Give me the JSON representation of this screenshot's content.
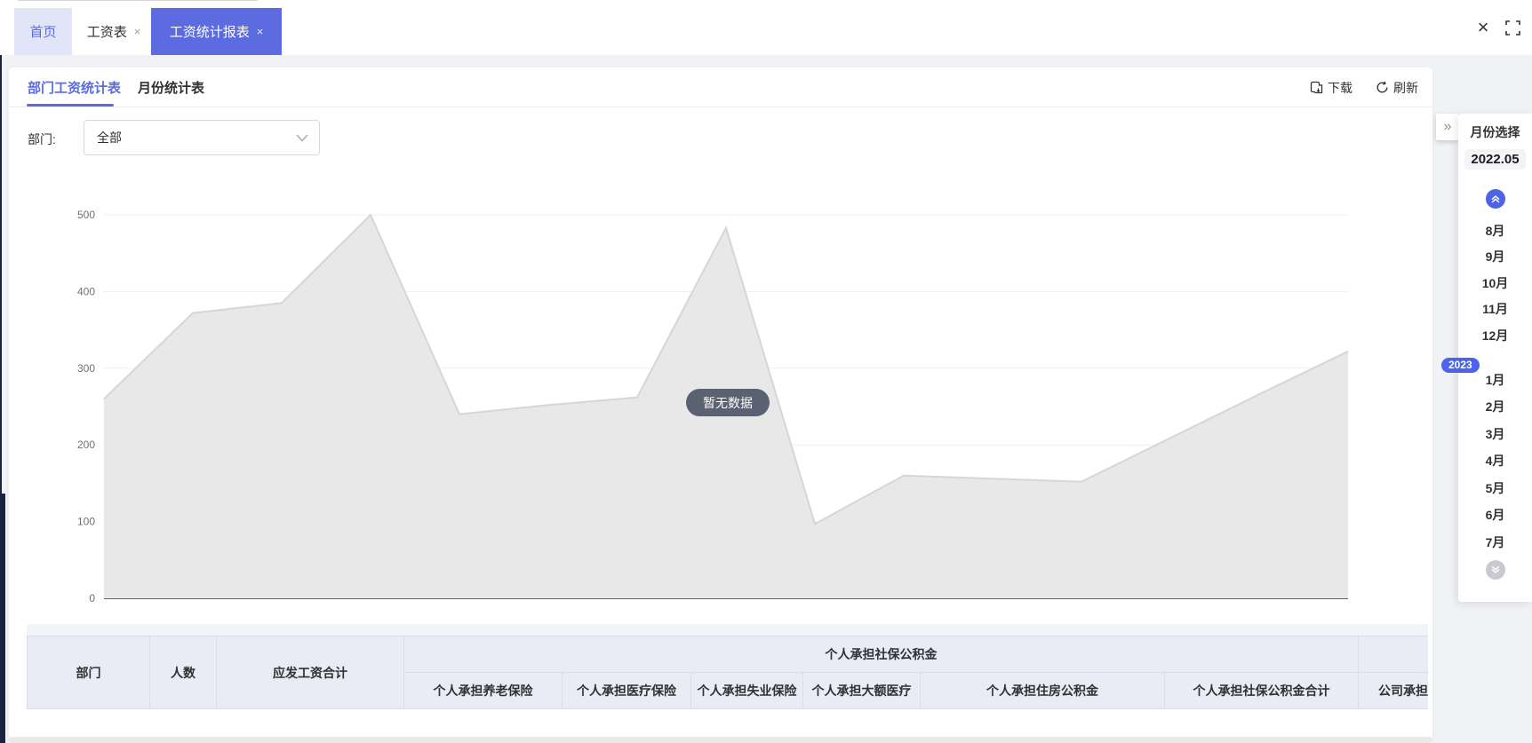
{
  "topbar": {
    "tabs": [
      {
        "label": "首页"
      },
      {
        "label": "工资表",
        "close": "×"
      },
      {
        "label": "工资统计报表",
        "close": "×"
      }
    ],
    "close_glyph": "×"
  },
  "card": {
    "tabs": [
      {
        "label": "部门工资统计表"
      },
      {
        "label": "月份统计表"
      }
    ],
    "actions": {
      "download": "下载",
      "refresh": "刷新"
    }
  },
  "filter": {
    "label": "部门:",
    "value": "全部"
  },
  "chart_data": {
    "type": "area",
    "series": [
      {
        "name": "",
        "values": [
          260,
          372,
          385,
          500,
          240,
          252,
          262,
          483,
          97,
          160,
          156,
          152,
          209,
          266,
          322
        ]
      }
    ],
    "y_ticks": [
      0,
      100,
      200,
      300,
      400,
      500
    ],
    "ylim": [
      0,
      500
    ],
    "x_tick_labels_visible": false,
    "grid": true,
    "area_color": "#e8e8e8",
    "line_color": "#d6d6d8",
    "axis_color": "#5f6368",
    "grid_color": "#eef0f5",
    "tick_label_color": "#6e7079",
    "no_data_label": "暂无数据"
  },
  "empty_tooltip": "暂无数据",
  "table": {
    "col_dept": "部门",
    "col_count": "人数",
    "col_total": "应发工资合计",
    "group_personal": "个人承担社保公积金",
    "sub": [
      "个人承担养老保险",
      "个人承担医疗保险",
      "个人承担失业保险",
      "个人承担大额医疗",
      "个人承担住房公积金",
      "个人承担社保公积金合计"
    ],
    "col_company": "公司承担社保公积金",
    "rows": []
  },
  "month_panel": {
    "collapse_glyph": "»",
    "title": "月份选择",
    "selected": "2022.05",
    "year_badge": "2023",
    "months_2022": [
      "8月",
      "9月",
      "10月",
      "11月",
      "12月"
    ],
    "months_2023": [
      "1月",
      "2月",
      "3月",
      "4月",
      "5月",
      "6月",
      "7月"
    ]
  },
  "colors": {
    "accent": "#5c6bdf",
    "page_bg": "#f0f2f5",
    "table_header_bg": "#e9ebf5",
    "tooltip_bg": "#5a6170"
  }
}
